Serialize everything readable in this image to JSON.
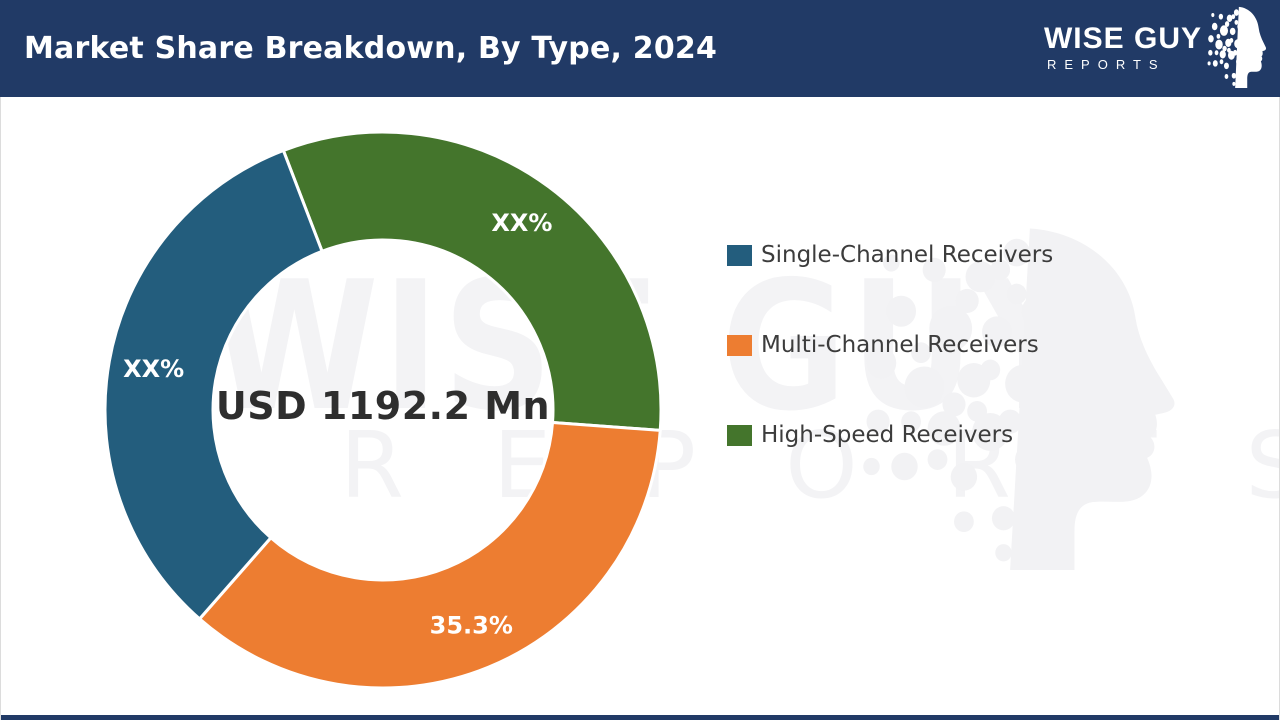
{
  "header": {
    "title": "Market Share Breakdown, By Type, 2024",
    "bg_color": "#213a66",
    "logo": {
      "line1": "WISE GUY",
      "line2": "REPORTS"
    }
  },
  "watermark": {
    "line1": "WISE GUY",
    "line2": "R E P O R T S"
  },
  "chart_data": {
    "type": "donut",
    "title": "Market Share Breakdown, By Type, 2024",
    "center_label": "USD 1192.2 Mn",
    "start_angle_deg": -21,
    "segments": [
      {
        "name": "High-Speed Receivers",
        "display_label": "XX%",
        "value_pct_est": 32.0,
        "color": "#44752c"
      },
      {
        "name": "Multi-Channel Receivers",
        "display_label": "35.3%",
        "value_pct_est": 35.3,
        "color": "#ed7d31"
      },
      {
        "name": "Single-Channel Receivers",
        "display_label": "XX%",
        "value_pct_est": 32.7,
        "color": "#235d7d"
      }
    ],
    "legend_position": "right",
    "slice_label_color": "#ffffff"
  },
  "legend": {
    "items": [
      {
        "label": "Single-Channel Receivers",
        "color": "#235d7d"
      },
      {
        "label": "Multi-Channel Receivers",
        "color": "#ed7d31"
      },
      {
        "label": "High-Speed Receivers",
        "color": "#44752c"
      }
    ]
  },
  "footer": {
    "bar_color": "#213a66"
  }
}
